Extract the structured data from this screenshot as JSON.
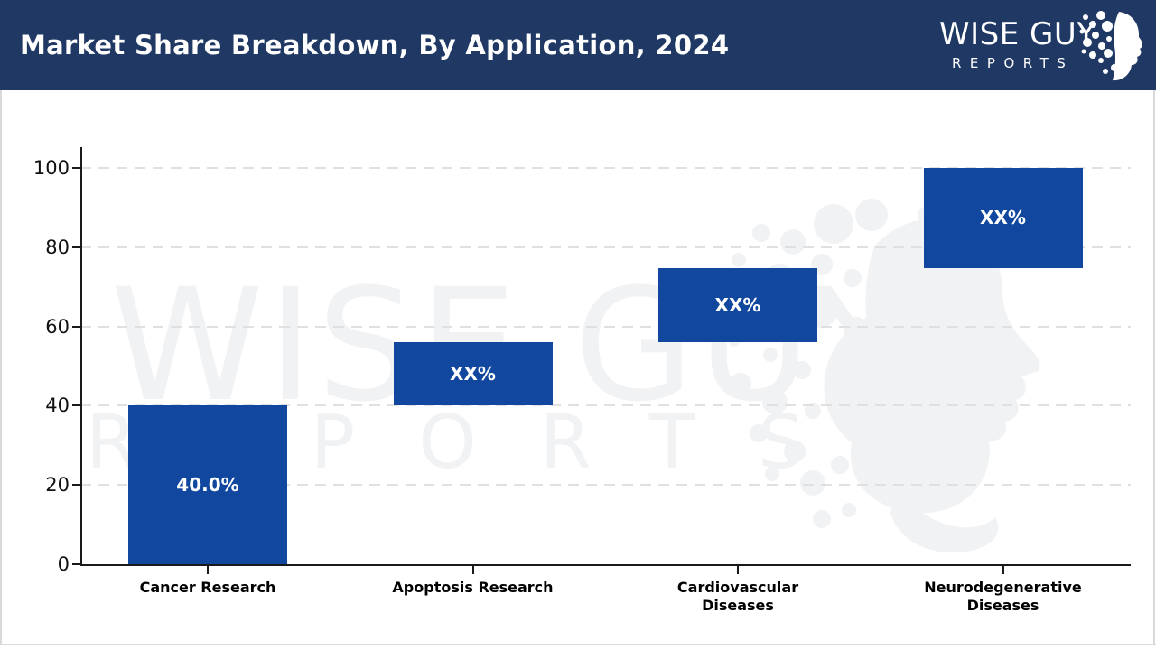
{
  "header": {
    "title": "Market Share Breakdown, By Application, 2024",
    "logo": {
      "line1": "WISE GUY",
      "line2": "R E P O R T S"
    }
  },
  "watermark": {
    "line1": "WISE GUY",
    "line2": "REPORTS"
  },
  "colors": {
    "header_bg": "#203864",
    "bar": "#11479e",
    "gridline": "#e0e0e0",
    "axis": "#1a1a1a",
    "watermark": "#f1f2f4",
    "bar_label_text": "#ffffff"
  },
  "chart_data": {
    "type": "bar",
    "subtype": "waterfall",
    "title": "Market Share Breakdown, By Application, 2024",
    "categories": [
      "Cancer Research",
      "Apoptosis Research",
      "Cardiovascular\nDiseases",
      "Neurodegenerative\nDiseases"
    ],
    "segments": [
      {
        "category": "Cancer Research",
        "start": 0,
        "end": 40,
        "label": "40.0%"
      },
      {
        "category": "Apoptosis Research",
        "start": 40,
        "end": 56,
        "label": "XX%"
      },
      {
        "category": "Cardiovascular Diseases",
        "start": 56,
        "end": 74.8,
        "label": "XX%"
      },
      {
        "category": "Neurodegenerative Diseases",
        "start": 74.8,
        "end": 100,
        "label": "XX%"
      }
    ],
    "yticks": [
      0,
      20,
      40,
      60,
      80,
      100
    ],
    "ylim": [
      0,
      105
    ],
    "grid": "horizontal-dashed",
    "legend": "none",
    "xlabel": "",
    "ylabel": ""
  }
}
